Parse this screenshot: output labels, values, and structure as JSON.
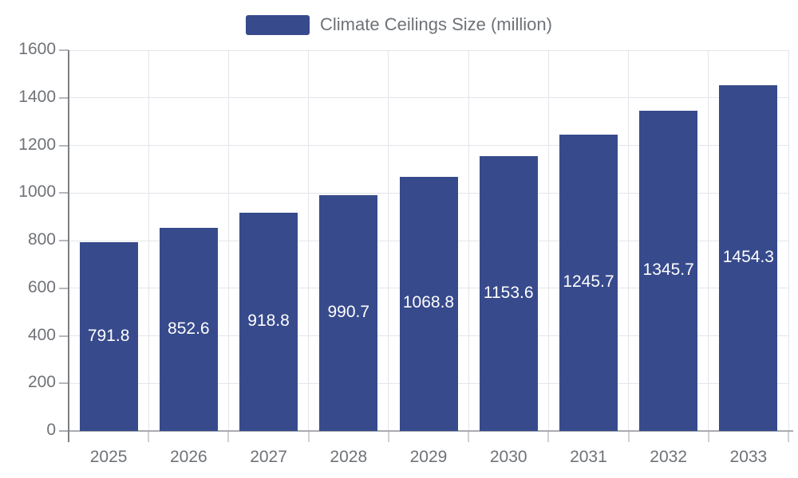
{
  "legend": {
    "label": "Climate Ceilings Size (million)"
  },
  "colors": {
    "bar": "#374a8c",
    "grid": "#e3e5ea",
    "y_axis_line": "#7c7f84",
    "x_axis_line": "#a9abaf",
    "y_tick": "#b4b7bc",
    "x_tick": "#ced1d6",
    "axis_label": "#6f7277",
    "value_label": "#ffffff",
    "legend_text": "#6e7277"
  },
  "chart_data": {
    "type": "bar",
    "title": "Climate Ceilings Size (million)",
    "series": [
      {
        "name": "Climate Ceilings Size (million)",
        "values": [
          791.8,
          852.6,
          918.8,
          990.7,
          1068.8,
          1153.6,
          1245.7,
          1345.7,
          1454.3
        ]
      }
    ],
    "categories": [
      "2025",
      "2026",
      "2027",
      "2028",
      "2029",
      "2030",
      "2031",
      "2032",
      "2033"
    ],
    "xlabel": "",
    "ylabel": "",
    "ylim": [
      0,
      1600
    ],
    "ytick_step": 200,
    "ytick_labels": [
      "0",
      "200",
      "400",
      "600",
      "800",
      "1000",
      "1200",
      "1400",
      "1600"
    ],
    "grid": "horizontal and vertical light gray gridlines",
    "legend_position": "top-center",
    "value_label_position": "inside-center"
  }
}
